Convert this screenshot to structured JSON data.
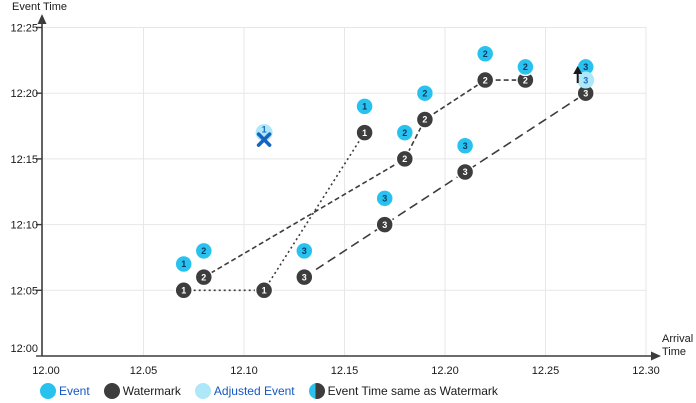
{
  "chart_data": {
    "type": "scatter",
    "title": "",
    "x_axis": {
      "title_lines": [
        "Arrival",
        "Time"
      ],
      "ticks": [
        {
          "value": 12.0,
          "label": "12.00"
        },
        {
          "value": 12.05,
          "label": "12.05"
        },
        {
          "value": 12.1,
          "label": "12.10"
        },
        {
          "value": 12.15,
          "label": "12.15"
        },
        {
          "value": 12.2,
          "label": "12.20"
        },
        {
          "value": 12.25,
          "label": "12.25"
        },
        {
          "value": 12.3,
          "label": "12.30"
        }
      ],
      "range": [
        12.0,
        12.3
      ]
    },
    "y_axis": {
      "title": "Event Time",
      "ticks": [
        {
          "minutes": 0,
          "label": "12:00"
        },
        {
          "minutes": 5,
          "label": "12:05"
        },
        {
          "minutes": 10,
          "label": "12:10"
        },
        {
          "minutes": 15,
          "label": "12:15"
        },
        {
          "minutes": 20,
          "label": "12:20"
        },
        {
          "minutes": 25,
          "label": "12:25"
        }
      ],
      "range_minutes": [
        0,
        25
      ],
      "grid": true
    },
    "events": [
      {
        "stream": 1,
        "arrival": 12.07,
        "event_time": "12:07"
      },
      {
        "stream": 2,
        "arrival": 12.08,
        "event_time": "12:08"
      },
      {
        "stream": 3,
        "arrival": 12.13,
        "event_time": "12:08"
      },
      {
        "stream": 1,
        "arrival": 12.16,
        "event_time": "12:19"
      },
      {
        "stream": 2,
        "arrival": 12.18,
        "event_time": "12:17"
      },
      {
        "stream": 2,
        "arrival": 12.19,
        "event_time": "12:20"
      },
      {
        "stream": 3,
        "arrival": 12.17,
        "event_time": "12:12"
      },
      {
        "stream": 3,
        "arrival": 12.21,
        "event_time": "12:16"
      },
      {
        "stream": 2,
        "arrival": 12.22,
        "event_time": "12:23"
      },
      {
        "stream": 2,
        "arrival": 12.24,
        "event_time": "12:22"
      },
      {
        "stream": 3,
        "arrival": 12.27,
        "event_time": "12:22"
      }
    ],
    "watermarks": [
      {
        "stream": 1,
        "arrival": 12.07,
        "event_time": "12:05"
      },
      {
        "stream": 2,
        "arrival": 12.08,
        "event_time": "12:06"
      },
      {
        "stream": 1,
        "arrival": 12.11,
        "event_time": "12:05"
      },
      {
        "stream": 3,
        "arrival": 12.13,
        "event_time": "12:06"
      },
      {
        "stream": 1,
        "arrival": 12.16,
        "event_time": "12:17"
      },
      {
        "stream": 2,
        "arrival": 12.18,
        "event_time": "12:15"
      },
      {
        "stream": 2,
        "arrival": 12.19,
        "event_time": "12:18"
      },
      {
        "stream": 3,
        "arrival": 12.17,
        "event_time": "12:10"
      },
      {
        "stream": 3,
        "arrival": 12.21,
        "event_time": "12:14"
      },
      {
        "stream": 2,
        "arrival": 12.22,
        "event_time": "12:21"
      },
      {
        "stream": 2,
        "arrival": 12.24,
        "event_time": "12:21"
      },
      {
        "stream": 3,
        "arrival": 12.27,
        "event_time": "12:20"
      }
    ],
    "adjusted_events": [
      {
        "stream": 1,
        "arrival": 12.11,
        "event_time": "12:17",
        "crossed_out": true,
        "arrow_up": false
      },
      {
        "stream": 3,
        "arrival": 12.27,
        "event_time": "12:21",
        "crossed_out": false,
        "arrow_up": true
      }
    ],
    "watermark_lines": [
      {
        "stream": 1,
        "style": "dotted",
        "points": [
          [
            12.07,
            "12:05"
          ],
          [
            12.11,
            "12:05"
          ],
          [
            12.16,
            "12:17"
          ]
        ]
      },
      {
        "stream": 2,
        "style": "dashed",
        "points": [
          [
            12.08,
            "12:06"
          ],
          [
            12.18,
            "12:15"
          ],
          [
            12.19,
            "12:18"
          ],
          [
            12.22,
            "12:21"
          ],
          [
            12.24,
            "12:21"
          ]
        ]
      },
      {
        "stream": 3,
        "style": "long-dash",
        "points": [
          [
            12.13,
            "12:06"
          ],
          [
            12.17,
            "12:10"
          ],
          [
            12.21,
            "12:14"
          ],
          [
            12.27,
            "12:20"
          ]
        ]
      }
    ]
  },
  "legend": {
    "items": [
      {
        "label": "Event",
        "swatch": "event",
        "label_color": "#1457c5"
      },
      {
        "label": "Watermark",
        "swatch": "watermark",
        "label_color": "#1a1a1a"
      },
      {
        "label": "Adjusted Event",
        "swatch": "adjusted",
        "label_color": "#1457c5"
      },
      {
        "label": "Event Time same as Watermark",
        "swatch": "half",
        "label_color": "#1a1a1a"
      }
    ]
  },
  "icons": {
    "x_mark": "x-mark-icon",
    "up_arrow": "up-arrow-icon",
    "y_axis_arrow": "axis-arrow-up-icon",
    "x_axis_arrow": "axis-arrow-right-icon"
  },
  "colors": {
    "event": "#29c2ef",
    "adjusted": "#ade7f8",
    "watermark": "#3d3d3d",
    "number_on_event": "#0a3a66",
    "number_on_adjusted": "#1b6ac9",
    "number_on_watermark": "#ffffff",
    "x_mark": "#1565c0",
    "up_arrow": "#1a1a1a",
    "grid": "#e7e7e7",
    "axis": "#3c3c3c",
    "text": "#1a1a1a",
    "legend_blue": "#1457c5"
  }
}
